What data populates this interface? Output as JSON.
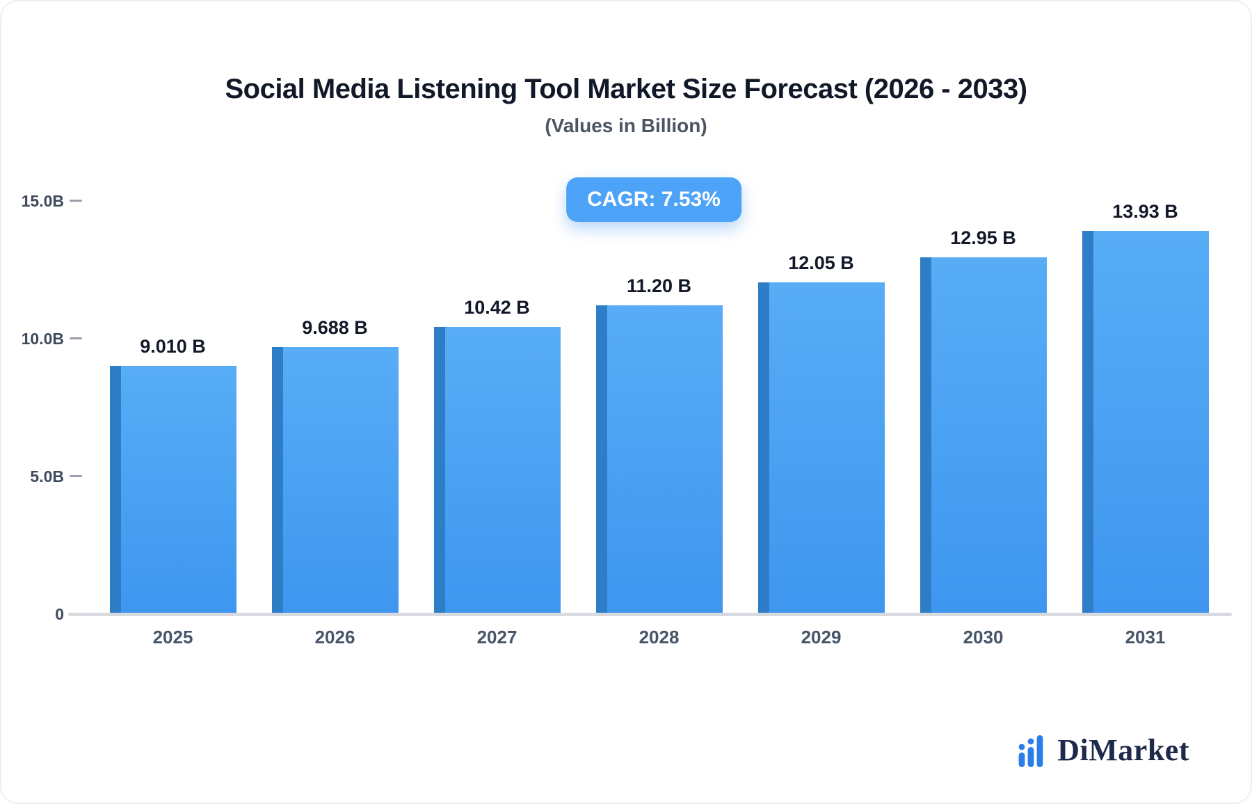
{
  "header": {
    "title": "Social Media Listening Tool Market Size Forecast (2026 - 2033)",
    "subtitle": "(Values in Billion)"
  },
  "badge": {
    "label": "CAGR: 7.53%"
  },
  "footer": {
    "brand": "DiMarket",
    "brand_icon": "bar-chart-icon"
  },
  "colors": {
    "bar_top": "#58ADF6",
    "bar_bottom": "#3E96EF",
    "bar_side": "#2D7DC7",
    "badge_bg": "#4DA3F7",
    "axis_line": "#D7DADE",
    "brand_blue": "#2B7DE9",
    "brand_text": "#1E2A4A"
  },
  "chart_data": {
    "type": "bar",
    "title": "Social Media Listening Tool Market Size Forecast (2026 - 2033)",
    "subtitle": "(Values in Billion)",
    "categories": [
      "2025",
      "2026",
      "2027",
      "2028",
      "2029",
      "2030",
      "2031"
    ],
    "values": [
      9.01,
      9.688,
      10.42,
      11.2,
      12.05,
      12.95,
      13.93
    ],
    "value_labels": [
      "9.010 B",
      "9.688 B",
      "10.42 B",
      "11.20 B",
      "12.05 B",
      "12.95 B",
      "13.93 B"
    ],
    "xlabel": "",
    "ylabel": "",
    "ylim": [
      0,
      15
    ],
    "yticks": [
      {
        "label": "15.0B",
        "value": 15
      },
      {
        "label": "10.0B",
        "value": 10
      },
      {
        "label": "5.0B",
        "value": 5
      },
      {
        "label": "0",
        "value": 0
      }
    ],
    "grid": false,
    "legend": false,
    "annotations": [
      "CAGR: 7.53%"
    ]
  }
}
